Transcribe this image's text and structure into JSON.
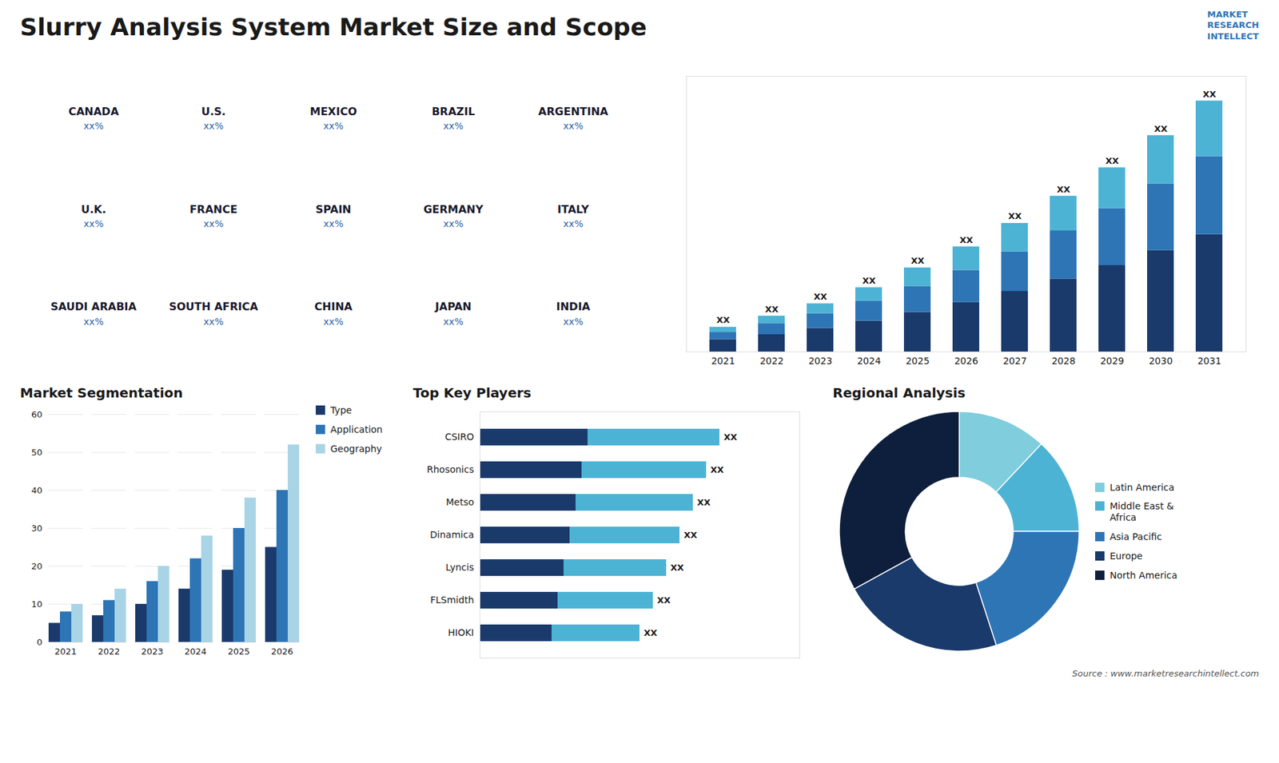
{
  "title": "Slurry Analysis System Market Size and Scope",
  "annotations": [
    "MARKET\nRESEARCH\nINTELLECT",
    "Source : www.marketresearchintellect.com"
  ],
  "chart_data": [
    {
      "type": "map",
      "categories": [
        "CANADA",
        "U.S.",
        "MEXICO",
        "BRAZIL",
        "ARGENTINA",
        "U.K.",
        "FRANCE",
        "SPAIN",
        "GERMANY",
        "ITALY",
        "SAUDI ARABIA",
        "SOUTH AFRICA",
        "CHINA",
        "JAPAN",
        "INDIA"
      ],
      "annotations": [
        "xx%",
        "xx%",
        "xx%",
        "xx%",
        "xx%",
        "xx%",
        "xx%",
        "xx%",
        "xx%",
        "xx%",
        "xx%",
        "xx%",
        "xx%",
        "xx%",
        "xx%"
      ]
    },
    {
      "type": "bar",
      "stacked": true,
      "categories": [
        "2021",
        "2022",
        "2023",
        "2024",
        "2025",
        "2026",
        "2027",
        "2028",
        "2029",
        "2030",
        "2031"
      ],
      "series": [
        {
          "color": "#1a3a6b",
          "values": [
            1,
            1.4,
            1.9,
            2.5,
            3.2,
            4.0,
            4.9,
            5.9,
            7.0,
            8.2,
            9.5
          ]
        },
        {
          "color": "#2e75b6",
          "values": [
            0.6,
            0.9,
            1.2,
            1.6,
            2.1,
            2.6,
            3.2,
            3.9,
            4.6,
            5.4,
            6.3
          ]
        },
        {
          "color": "#4db3d4",
          "values": [
            0.4,
            0.6,
            0.8,
            1.1,
            1.5,
            1.9,
            2.3,
            2.8,
            3.3,
            3.9,
            4.5
          ]
        }
      ],
      "ylim": [
        0,
        22.3
      ],
      "tick_labels": "x",
      "annotations": [
        "XX",
        "XX",
        "XX",
        "XX",
        "XX",
        "XX",
        "XX",
        "XX",
        "XX",
        "XX",
        "XX"
      ]
    },
    {
      "type": "bar",
      "title": "Market Segmentation",
      "categories": [
        "2021",
        "2022",
        "2023",
        "2024",
        "2025",
        "2026"
      ],
      "series": [
        {
          "name": "Type",
          "color": "#1a3a6b",
          "values": [
            5,
            7,
            10,
            14,
            19,
            25
          ]
        },
        {
          "name": "Application",
          "color": "#2e75b6",
          "values": [
            8,
            11,
            16,
            22,
            30,
            40
          ]
        },
        {
          "name": "Geography",
          "color": "#a8d4e6",
          "values": [
            10,
            14,
            20,
            28,
            38,
            52
          ]
        }
      ],
      "ylim": [
        0,
        60
      ],
      "yticks": [
        0,
        10,
        20,
        30,
        40,
        50,
        60
      ],
      "grid": true,
      "legend": "right"
    },
    {
      "type": "bar",
      "title": "Top Key Players",
      "orientation": "horizontal",
      "stacked": true,
      "categories": [
        "CSIRO",
        "Rhosonics",
        "Metso",
        "Dinamica",
        "Lyncis",
        "FLSmidth",
        "HIOKI"
      ],
      "series": [
        {
          "color": "#1a3a6b",
          "values": [
            4.05,
            3.825,
            3.6,
            3.375,
            3.15,
            2.925,
            2.7
          ]
        },
        {
          "color": "#4db3d4",
          "values": [
            4.95,
            4.675,
            4.4,
            4.125,
            3.85,
            3.575,
            3.3
          ]
        }
      ],
      "xlim": [
        0,
        12
      ],
      "tick_labels": "y",
      "annotations": [
        "XX",
        "XX",
        "XX",
        "XX",
        "XX",
        "XX",
        "XX"
      ]
    },
    {
      "type": "pie",
      "title": "Regional Analysis",
      "categories": [
        "Latin America",
        "Middle East &\nAfrica",
        "Asia Pacific",
        "Europe",
        "North America"
      ],
      "values": [
        0.12,
        0.13,
        0.2,
        0.22,
        0.33
      ],
      "colors": [
        "#7fcddd",
        "#4db3d4",
        "#2e75b6",
        "#1a3a6b",
        "#0d1f3c"
      ],
      "legend": "right"
    }
  ]
}
